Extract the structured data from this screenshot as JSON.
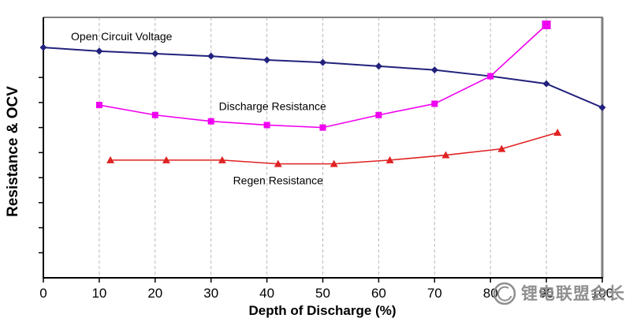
{
  "watermark": {
    "text": "锂电联盟会长",
    "color": "#8f8f8f",
    "logo": "circle-swirl-logo"
  },
  "chart_data": {
    "type": "line",
    "title": "",
    "xlabel": "Depth of Discharge (%)",
    "ylabel": "Resistance & OCV",
    "xlim": [
      0,
      100
    ],
    "ylim": [
      0,
      10.4
    ],
    "x_ticks": [
      0,
      10,
      20,
      30,
      40,
      50,
      60,
      70,
      80,
      90,
      100
    ],
    "x_tick_labels": [
      "0",
      "10",
      "20",
      "30",
      "40",
      "50",
      "60",
      "70",
      "80",
      "90",
      "100"
    ],
    "y_ticks": [
      1,
      2,
      3,
      4,
      5,
      6,
      7,
      8
    ],
    "y_tick_labels": [],
    "grid": {
      "vertical": true,
      "horizontal": false,
      "style": "dashed",
      "color": "#b8b8b8"
    },
    "axis_color": "#000000",
    "border_color": "#808080",
    "legend_position": "none (inline text annotations)",
    "series": [
      {
        "name": "Open Circuit Voltage",
        "color": "#22227d",
        "marker": "diamond",
        "x": [
          0,
          10,
          20,
          30,
          40,
          50,
          60,
          70,
          80,
          90,
          100
        ],
        "y": [
          9.2,
          9.05,
          8.95,
          8.85,
          8.7,
          8.6,
          8.45,
          8.3,
          8.05,
          7.75,
          6.8
        ]
      },
      {
        "name": "Discharge Resistance",
        "color": "#f000f0",
        "marker": "square",
        "x": [
          10,
          20,
          30,
          40,
          50,
          60,
          70,
          80,
          90
        ],
        "y": [
          6.9,
          6.5,
          6.25,
          6.1,
          6.0,
          6.5,
          6.95,
          8.05,
          10.1
        ]
      },
      {
        "name": "Regen Resistance",
        "color": "#e02222",
        "marker": "triangle",
        "x": [
          12,
          22,
          32,
          42,
          52,
          62,
          72,
          82,
          92
        ],
        "y": [
          4.7,
          4.7,
          4.7,
          4.55,
          4.55,
          4.7,
          4.9,
          5.15,
          5.8
        ]
      }
    ],
    "annotations": [
      {
        "text": "Open Circuit Voltage",
        "x": 14,
        "y": 9.65
      },
      {
        "text": "Discharge Resistance",
        "x": 41,
        "y": 6.85
      },
      {
        "text": "Regen Resistance",
        "x": 42,
        "y": 3.9
      }
    ]
  }
}
